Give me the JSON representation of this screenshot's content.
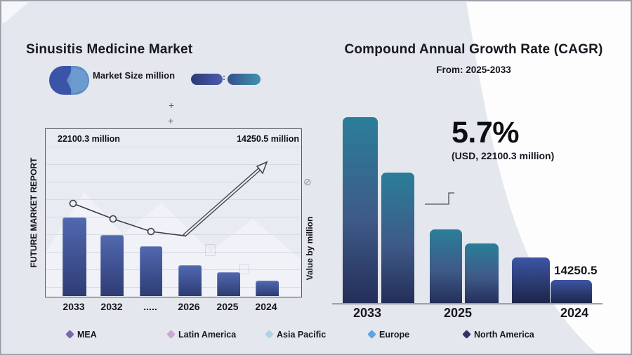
{
  "header": {
    "left_title": "Sinusitis Medicine Market",
    "market_size_label": "Market Size million",
    "pill_separator": ":",
    "plus_icon": "+"
  },
  "left_chart": {
    "top_left_value": "22100.3 million",
    "top_right_value": "14250.5 million",
    "left_watermark": "FUTURE MARKET REPORT",
    "right_axis_label": "Value by million",
    "slash_icon": "⊘",
    "x_labels": [
      "2033",
      "2032",
      ".....",
      "2026",
      "2025",
      "2024"
    ]
  },
  "right_panel": {
    "title": "Compound Annual Growth Rate (CAGR)",
    "subtitle": "From: 2025-2033",
    "cagr_value": "5.7%",
    "cagr_note": "(USD, 22100.3 million)",
    "bar_value_label": "14250.5",
    "x_labels": [
      "2033",
      "2025",
      "2024"
    ]
  },
  "legend": {
    "items": [
      {
        "label": "MEA",
        "color": "#7e66ad"
      },
      {
        "label": "Latin America",
        "color": "#cda6d4"
      },
      {
        "label": "Asia Pacific",
        "color": "#aed3e8"
      },
      {
        "label": "Europe",
        "color": "#58a7e0"
      },
      {
        "label": "North America",
        "color": "#2e3560"
      }
    ]
  },
  "colors": {
    "background": "#e4e7ee",
    "left_bar_top": "#5168b0",
    "left_bar_bottom": "#2e3c74",
    "right_bar_teal_top": "#2a7e99",
    "right_bar_navy_bottom": "#232e58",
    "right_bar_blue_top": "#3d55a4",
    "right_bar_blue_bottom": "#1c2547",
    "trend_line": "#3c3f47"
  },
  "chart_data": [
    {
      "type": "bar",
      "title": "Sinusitis Medicine Market",
      "series_label": "Market Size million",
      "unit": "USD million",
      "categories": [
        "2033",
        "2032",
        ".....",
        "2026",
        "2025",
        "2024"
      ],
      "x_axis_reversed": true,
      "bars_relative": [
        1.0,
        0.78,
        0.63,
        0.39,
        0.3,
        0.2
      ],
      "labeled_values": {
        "2033": 22100.3,
        "2024": 14250.5
      },
      "annotations": [
        "22100.3 million",
        "14250.5 million"
      ],
      "ylabel": "Value by million",
      "watermark": "FUTURE MARKET REPORT",
      "trend_note": "declining marker line from 2033 bars with upward arrow toward 14250.5 million",
      "grid": true,
      "legend_position": "bottom"
    },
    {
      "type": "bar",
      "title": "Compound Annual Growth Rate (CAGR)",
      "subtitle": "From: 2025-2033",
      "cagr": "5.7%",
      "cagr_note": "(USD, 22100.3 million)",
      "unit": "USD million",
      "categories": [
        "2033",
        "2025",
        "2024"
      ],
      "series": [
        {
          "name": "series-a",
          "heights_relative": [
            1.0,
            0.398,
            0.248
          ]
        },
        {
          "name": "series-b",
          "heights_relative": [
            0.703,
            0.323,
            0.128
          ]
        }
      ],
      "labeled_values": {
        "2033": 22100.3,
        "2024": 14250.5
      },
      "bar_label": "14250.5",
      "grid": false
    }
  ]
}
